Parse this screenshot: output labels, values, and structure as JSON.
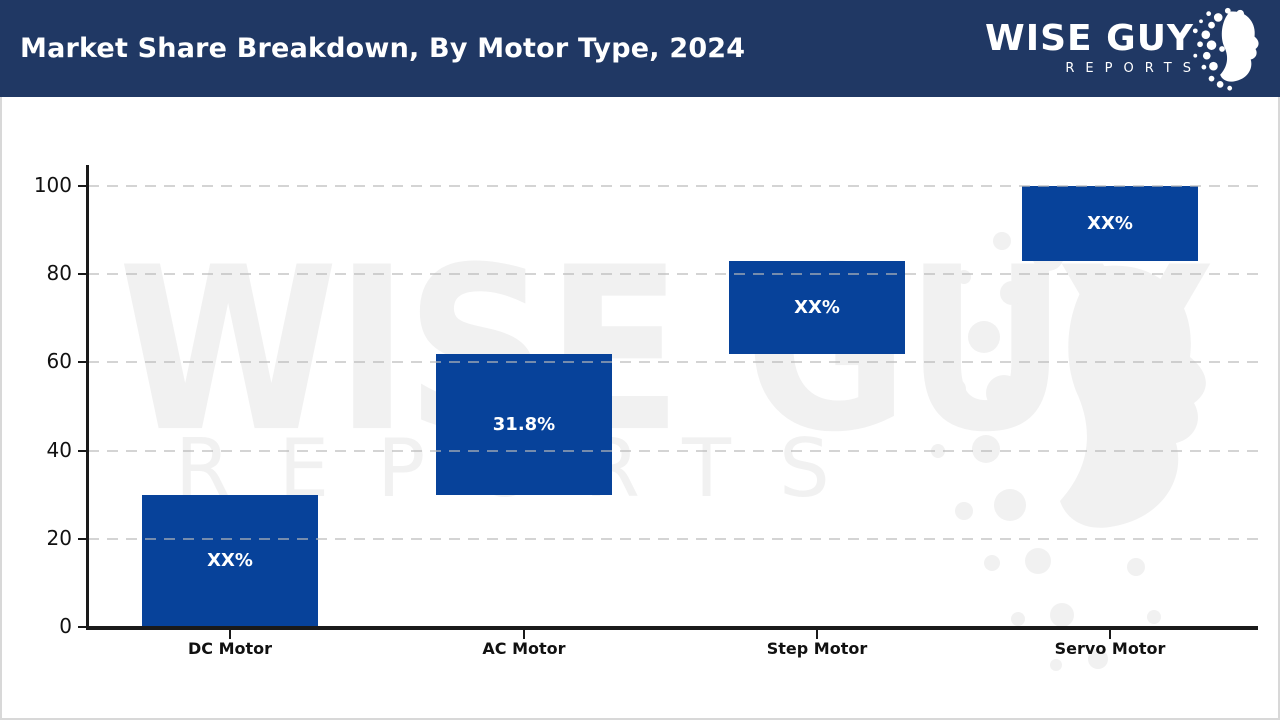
{
  "header": {
    "title": "Market Share Breakdown, By Motor Type, 2024",
    "logo": {
      "line1": "WISE GUY",
      "line2": "REPORTS"
    }
  },
  "watermark": {
    "line1": "WISE GUY",
    "line2": "REPORTS"
  },
  "chart_data": {
    "type": "bar",
    "subtype": "waterfall-floating-bars",
    "title": "Market Share Breakdown, By Motor Type, 2024",
    "categories": [
      "DC Motor",
      "AC Motor",
      "Step Motor",
      "Servo Motor"
    ],
    "segments": [
      {
        "category": "DC Motor",
        "start": 0,
        "end": 30,
        "label": "XX%"
      },
      {
        "category": "AC Motor",
        "start": 30,
        "end": 61.8,
        "label": "31.8%"
      },
      {
        "category": "Step Motor",
        "start": 61.8,
        "end": 83,
        "label": "XX%"
      },
      {
        "category": "Servo Motor",
        "start": 83,
        "end": 100,
        "label": "XX%"
      }
    ],
    "xlabel": "",
    "ylabel": "",
    "ylim": [
      0,
      100
    ],
    "yticks": [
      0,
      20,
      40,
      60,
      80,
      100
    ],
    "grid": "horizontal-dashed-over-bars",
    "legend": "none",
    "bar_color": "#07429a",
    "bar_label_color": "#ffffff",
    "axis_color": "#1a1a1a",
    "grid_color": "#d9d9d9"
  },
  "colors": {
    "header_bg": "#203864",
    "bar": "#07429a",
    "watermark": "#f1f1f1",
    "page_border": "#d8d8d8"
  }
}
